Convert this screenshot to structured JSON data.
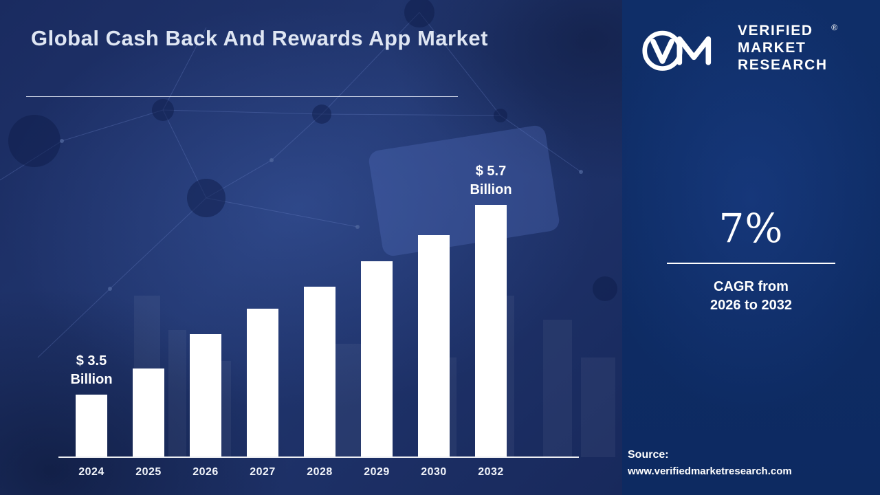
{
  "page": {
    "title": "Global Cash Back And Rewards App Market"
  },
  "brand": {
    "logo": "vmr-monogram",
    "name_lines": [
      "VERIFIED",
      "MARKET",
      "RESEARCH"
    ],
    "registered_mark": "®"
  },
  "stat": {
    "value": "7%",
    "caption_lines": [
      "CAGR from",
      "2026 to 2032"
    ]
  },
  "source": {
    "label": "Source:",
    "url": "www.verifiedmarketresearch.com"
  },
  "colors": {
    "background": "#1c2f66",
    "panel": "#0e2c64",
    "bar": "#ffffff",
    "text": "#ffffff"
  },
  "chart_data": {
    "type": "bar",
    "title": "Global Cash Back And Rewards App Market",
    "categories": [
      "2024",
      "2025",
      "2026",
      "2027",
      "2028",
      "2029",
      "2030",
      "2032"
    ],
    "values": [
      3.5,
      3.8,
      4.2,
      4.5,
      4.75,
      5.05,
      5.35,
      5.7
    ],
    "unit": "$ Billion",
    "bar_color": "#ffffff",
    "xlabel": "",
    "ylabel": "",
    "grid": false,
    "y_axis_visible": false,
    "legend": "none",
    "annotations": [
      {
        "category": "2024",
        "lines": [
          "$ 3.5",
          "Billion"
        ]
      },
      {
        "category": "2032",
        "lines": [
          "$ 5.7",
          "Billion"
        ]
      }
    ]
  }
}
